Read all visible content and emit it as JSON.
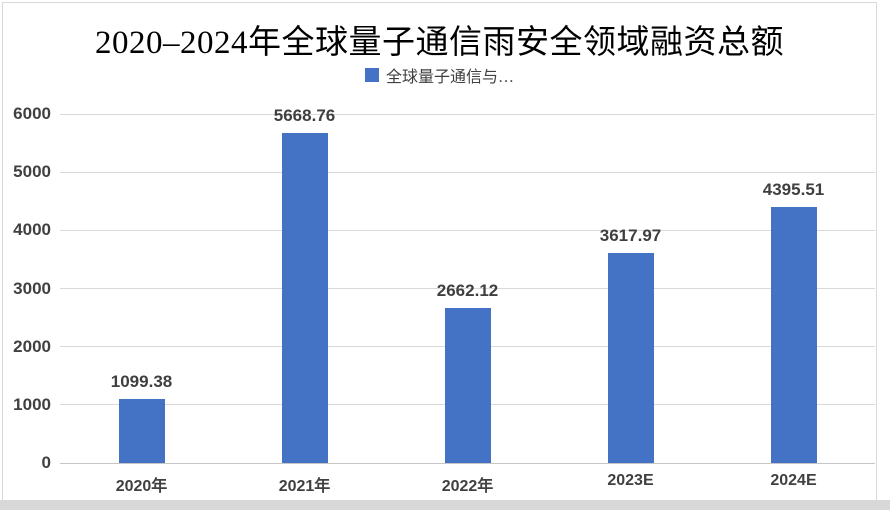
{
  "chart": {
    "title": "2020–2024年全球量子通信雨安全领域融资总额",
    "legend_label": "全球量子通信与…"
  },
  "chart_data": {
    "type": "bar",
    "title": "2020–2024年全球量子通信雨安全领域融资总额",
    "categories": [
      "2020年",
      "2021年",
      "2022年",
      "2023E",
      "2024E"
    ],
    "series": [
      {
        "name": "全球量子通信与…",
        "values": [
          1099.38,
          5668.76,
          2662.12,
          3617.97,
          4395.51
        ]
      }
    ],
    "values": [
      1099.38,
      5668.76,
      2662.12,
      3617.97,
      4395.51
    ],
    "value_labels": [
      "1099.38",
      "5668.76",
      "2662.12",
      "3617.97",
      "4395.51"
    ],
    "xlabel": "",
    "ylabel": "",
    "ylim": [
      0,
      6000
    ],
    "yticks": [
      0,
      1000,
      2000,
      3000,
      4000,
      5000,
      6000
    ],
    "grid": true,
    "legend_position": "top",
    "colors": {
      "bar": "#4472C4",
      "gridline": "#D9D9D9",
      "label_text": "#404040",
      "title_text": "#000000"
    }
  }
}
